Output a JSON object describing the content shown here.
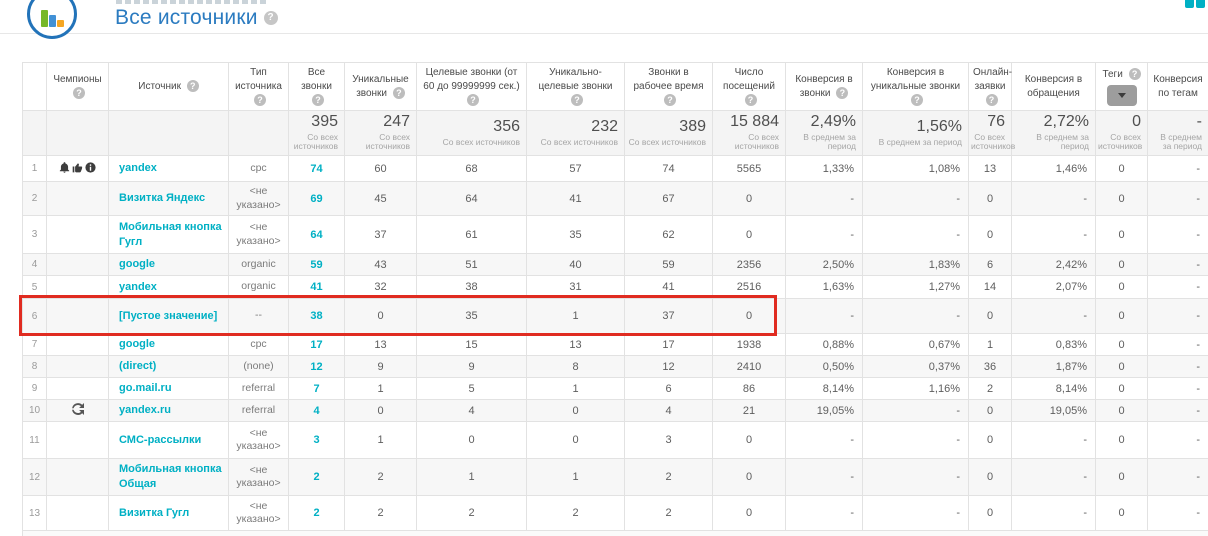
{
  "header": {
    "title": "Все источники"
  },
  "icons": {
    "help": "?"
  },
  "table": {
    "columns": [
      {
        "id": "num",
        "label": ""
      },
      {
        "id": "champions",
        "label": "Чемпионы",
        "help": true
      },
      {
        "id": "source",
        "label": "Источник",
        "help": true
      },
      {
        "id": "source_type",
        "label": "Тип источника",
        "help": true
      },
      {
        "id": "all_calls",
        "label": "Все звонки",
        "help": true
      },
      {
        "id": "unique_calls",
        "label": "Уникальные звонки",
        "help": true
      },
      {
        "id": "target_calls",
        "label": "Целевые звонки (от 60 до 99999999 сек.)",
        "help": true
      },
      {
        "id": "unique_target_calls",
        "label": "Уникально-целевые звонки",
        "help": true
      },
      {
        "id": "work_hours_calls",
        "label": "Звонки в рабочее время",
        "help": true
      },
      {
        "id": "visits",
        "label": "Число посещений",
        "help": true
      },
      {
        "id": "conv_calls",
        "label": "Конверсия в звонки",
        "help": true
      },
      {
        "id": "conv_unique_calls",
        "label": "Конверсия в уникальные звонки",
        "help": true
      },
      {
        "id": "online_leads",
        "label": "Онлайн-заявки",
        "help": true
      },
      {
        "id": "conv_requests",
        "label": "Конверсия в обращения",
        "help": false
      },
      {
        "id": "tags",
        "label": "Теги",
        "help": true,
        "dropdown": true
      },
      {
        "id": "conv_tags",
        "label": "Конверсия по тегам",
        "help": false
      }
    ],
    "summary": {
      "all_calls": {
        "value": "395",
        "caption": "Со всех источников"
      },
      "unique_calls": {
        "value": "247",
        "caption": "Со всех источников"
      },
      "target_calls": {
        "value": "356",
        "caption": "Со всех источников"
      },
      "unique_target_calls": {
        "value": "232",
        "caption": "Со всех источников"
      },
      "work_hours_calls": {
        "value": "389",
        "caption": "Со всех источников"
      },
      "visits": {
        "value": "15 884",
        "caption": "Со всех источников"
      },
      "conv_calls": {
        "value": "2,49%",
        "caption": "В среднем за период"
      },
      "conv_unique_calls": {
        "value": "1,56%",
        "caption": "В среднем за период"
      },
      "online_leads": {
        "value": "76",
        "caption": "Со всех источников"
      },
      "conv_requests": {
        "value": "2,72%",
        "caption": "В среднем за период"
      },
      "tags": {
        "value": "0",
        "caption": "Со всех источников"
      },
      "conv_tags": {
        "value": "-",
        "caption": "В среднем за период"
      }
    },
    "rows": [
      {
        "num": "1",
        "champions": [
          "bell",
          "thumbs-up",
          "info"
        ],
        "source": "yandex",
        "source_type": "cpc",
        "values": [
          "74",
          "60",
          "68",
          "57",
          "74",
          "5565",
          "1,33%",
          "1,08%",
          "13",
          "1,46%",
          "0",
          "-"
        ]
      },
      {
        "num": "2",
        "champions": [],
        "source": "Визитка Яндекс",
        "source_type": "<не указано>",
        "values": [
          "69",
          "45",
          "64",
          "41",
          "67",
          "0",
          "-",
          "-",
          "0",
          "-",
          "0",
          "-"
        ]
      },
      {
        "num": "3",
        "champions": [],
        "source": "Мобильная кнопка Гугл",
        "source_type": "<не указано>",
        "values": [
          "64",
          "37",
          "61",
          "35",
          "62",
          "0",
          "-",
          "-",
          "0",
          "-",
          "0",
          "-"
        ]
      },
      {
        "num": "4",
        "champions": [],
        "source": "google",
        "source_type": "organic",
        "values": [
          "59",
          "43",
          "51",
          "40",
          "59",
          "2356",
          "2,50%",
          "1,83%",
          "6",
          "2,42%",
          "0",
          "-"
        ]
      },
      {
        "num": "5",
        "champions": [],
        "source": "yandex",
        "source_type": "organic",
        "values": [
          "41",
          "32",
          "38",
          "31",
          "41",
          "2516",
          "1,63%",
          "1,27%",
          "14",
          "2,07%",
          "0",
          "-"
        ]
      },
      {
        "num": "6",
        "champions": [],
        "source": "[Пустое значение]",
        "source_type": "--",
        "highlighted": true,
        "values": [
          "38",
          "0",
          "35",
          "1",
          "37",
          "0",
          "-",
          "-",
          "0",
          "-",
          "0",
          "-"
        ]
      },
      {
        "num": "7",
        "champions": [],
        "source": "google",
        "source_type": "cpc",
        "values": [
          "17",
          "13",
          "15",
          "13",
          "17",
          "1938",
          "0,88%",
          "0,67%",
          "1",
          "0,83%",
          "0",
          "-"
        ]
      },
      {
        "num": "8",
        "champions": [],
        "source": "(direct)",
        "source_type": "(none)",
        "values": [
          "12",
          "9",
          "9",
          "8",
          "12",
          "2410",
          "0,50%",
          "0,37%",
          "36",
          "1,87%",
          "0",
          "-"
        ]
      },
      {
        "num": "9",
        "champions": [],
        "source": "go.mail.ru",
        "source_type": "referral",
        "values": [
          "7",
          "1",
          "5",
          "1",
          "6",
          "86",
          "8,14%",
          "1,16%",
          "2",
          "8,14%",
          "0",
          "-"
        ]
      },
      {
        "num": "10",
        "champions": [
          "refresh"
        ],
        "source": "yandex.ru",
        "source_type": "referral",
        "values": [
          "4",
          "0",
          "4",
          "0",
          "4",
          "21",
          "19,05%",
          "-",
          "0",
          "19,05%",
          "0",
          "-"
        ]
      },
      {
        "num": "11",
        "champions": [],
        "source": "СМС-рассылки",
        "source_type": "<не указано>",
        "values": [
          "3",
          "1",
          "0",
          "0",
          "3",
          "0",
          "-",
          "-",
          "0",
          "-",
          "0",
          "-"
        ]
      },
      {
        "num": "12",
        "champions": [],
        "source": "Мобильная кнопка Общая",
        "source_type": "<не указано>",
        "values": [
          "2",
          "2",
          "1",
          "1",
          "2",
          "0",
          "-",
          "-",
          "0",
          "-",
          "0",
          "-"
        ]
      },
      {
        "num": "13",
        "champions": [],
        "source": "Визитка Гугл",
        "source_type": "<не указано>",
        "values": [
          "2",
          "2",
          "2",
          "2",
          "2",
          "0",
          "-",
          "-",
          "0",
          "-",
          "0",
          "-"
        ]
      }
    ]
  }
}
